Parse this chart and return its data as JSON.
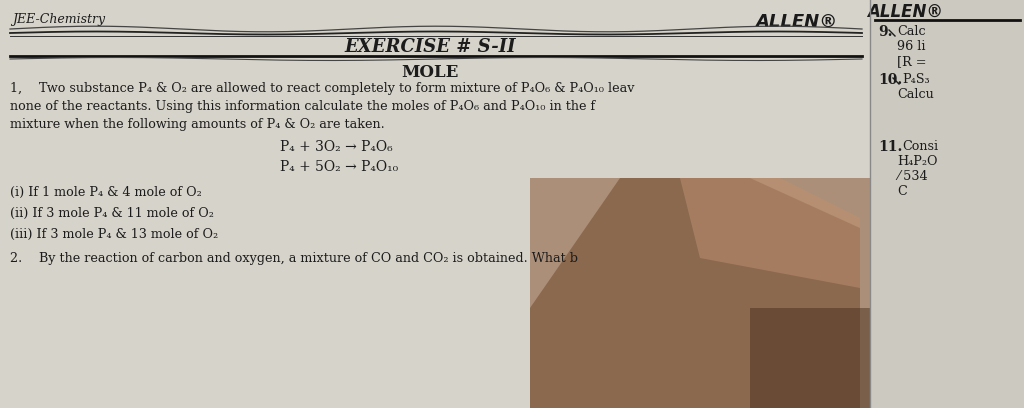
{
  "header_left": "JEE-Chemistry",
  "header_right": "ALLEN®",
  "right_panel_header": "ALLEN®",
  "exercise_title": "EXERCISE # S-II",
  "section_title": "MOLE",
  "main_body": [
    "1,  Two substance P₄ & O₂ are allowed to react completely to form mixture of P₄O₆ & P₄O₁₀ leav",
    "none of the reactants. Using this information calculate the moles of P₄O₆ and P₄O₁₀ in the f",
    "mixture when the following amounts of P₄ & O₂ are taken."
  ],
  "reaction1": "P₄ + 3O₂ → P₄O₆",
  "reaction2": "P₄ + 5O₂ → P₄O₁₀",
  "sub_parts": [
    "(i) If 1 mole P₄ & 4 mole of O₂",
    "(ii) If 3 mole P₄ & 11 mole of O₂",
    "(iii) If 3 mole P₄ & 13 mole of O₂"
  ],
  "bottom_text": "2.  By the reaction of carbon and oxygen, a mixture of CO and CO₂ is obtained. What b",
  "right_panel_9": "9.",
  "right_panel_9_text": "Calc",
  "right_panel_9_line2": "96 li",
  "right_panel_9_line3": "[R =",
  "right_panel_10": "10.",
  "right_panel_10_text": "P₄S₃",
  "right_panel_10_line2": "Calcu",
  "right_panel_11": "11.",
  "right_panel_11_text": "Consi",
  "right_panel_11_line2": "H₄P₂O",
  "right_panel_11_line3": "⁄ 534",
  "right_panel_11_line4": "C",
  "page_color": "#d6d3ca",
  "right_panel_color": "#ccc9c0",
  "text_color": "#1c1c1c",
  "line_color": "#111111"
}
